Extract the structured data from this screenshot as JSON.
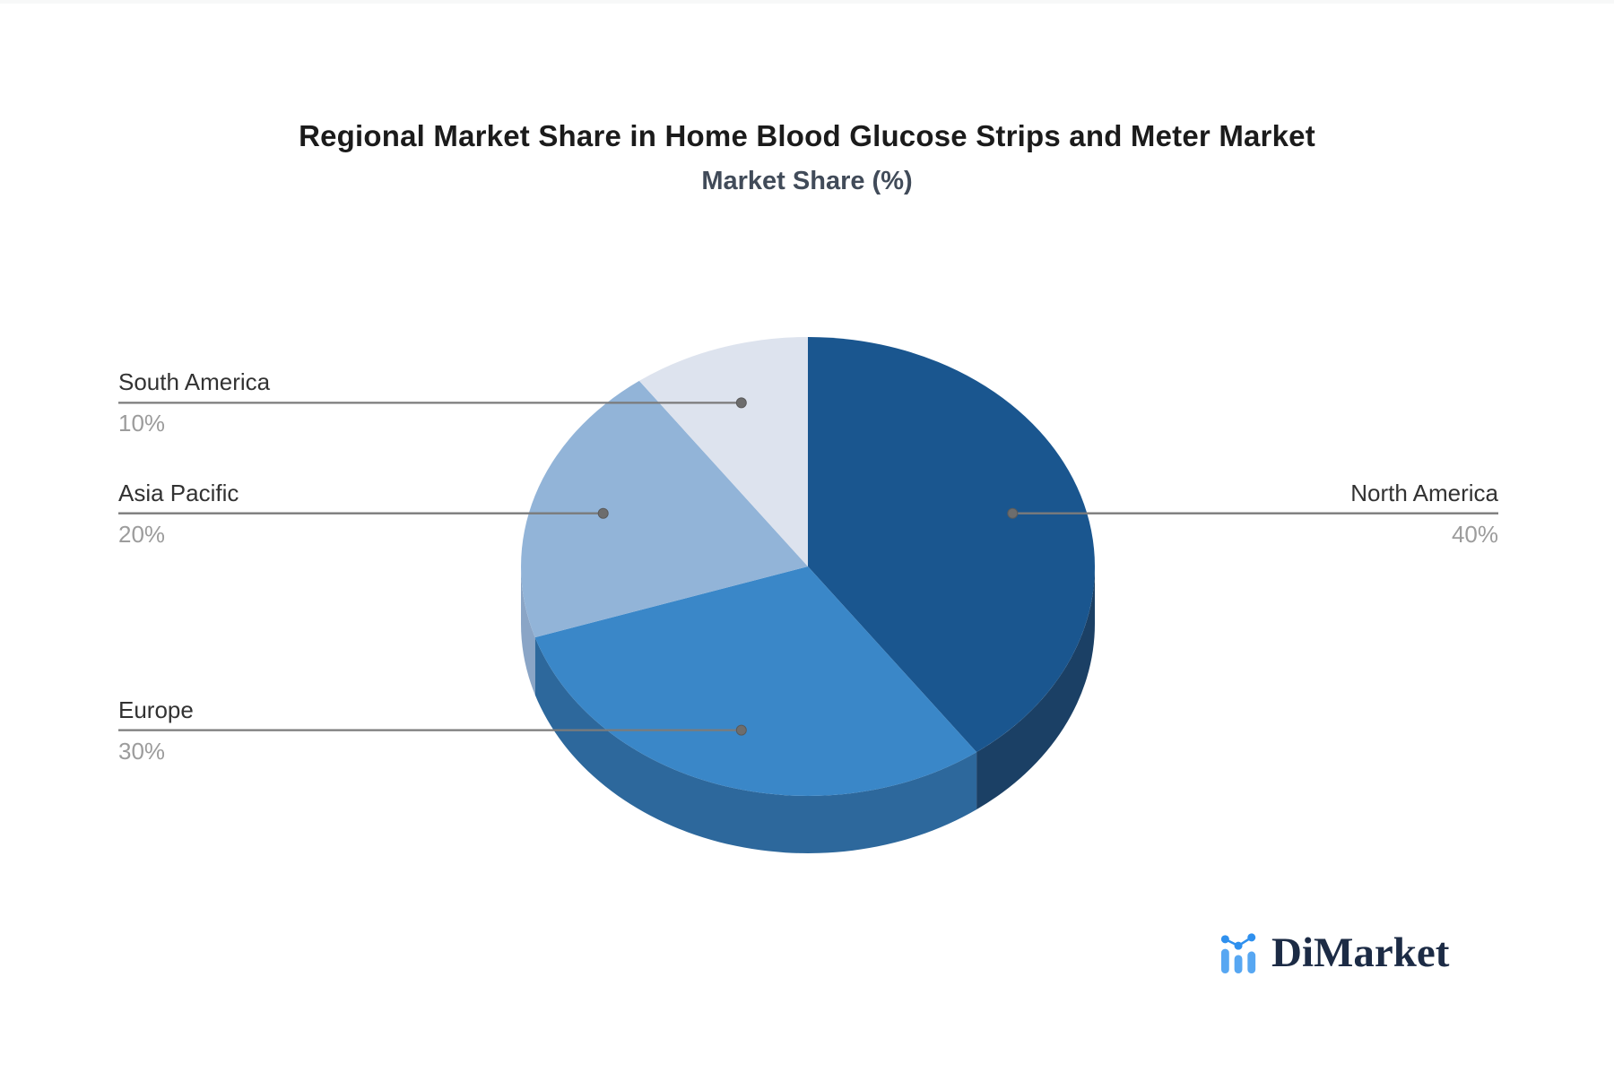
{
  "chart_data": {
    "type": "pie",
    "style": "3d-pie",
    "title": "Regional Market Share in Home Blood Glucose Strips and Meter Market",
    "subtitle": "Market Share (%)",
    "unit": "%",
    "start_angle": "top",
    "direction": "clockwise",
    "legend": false,
    "categories": [
      "North America",
      "Europe",
      "Asia Pacific",
      "South America"
    ],
    "values": [
      40,
      30,
      20,
      10
    ],
    "display_values": [
      "40%",
      "30%",
      "20%",
      "10%"
    ],
    "colors": [
      "#1a568f",
      "#3a87c8",
      "#92b4d8",
      "#dde3ee"
    ],
    "depth_colors": [
      "#1b4065",
      "#2d689c",
      "#8aa5c6",
      "#b9c6d9"
    ],
    "callout_sides": [
      "right",
      "left",
      "left",
      "left"
    ],
    "leader_line_color": "#7b7b7b",
    "leader_dot_color": "#6d6d6d"
  },
  "branding": {
    "logo_text": "DiMarket",
    "logo_icon": "bar-line-chart-icon",
    "logo_text_color": "#1c2b45",
    "icon_bar_color": "#57a7f2",
    "icon_dot_color": "#2f90ee"
  }
}
